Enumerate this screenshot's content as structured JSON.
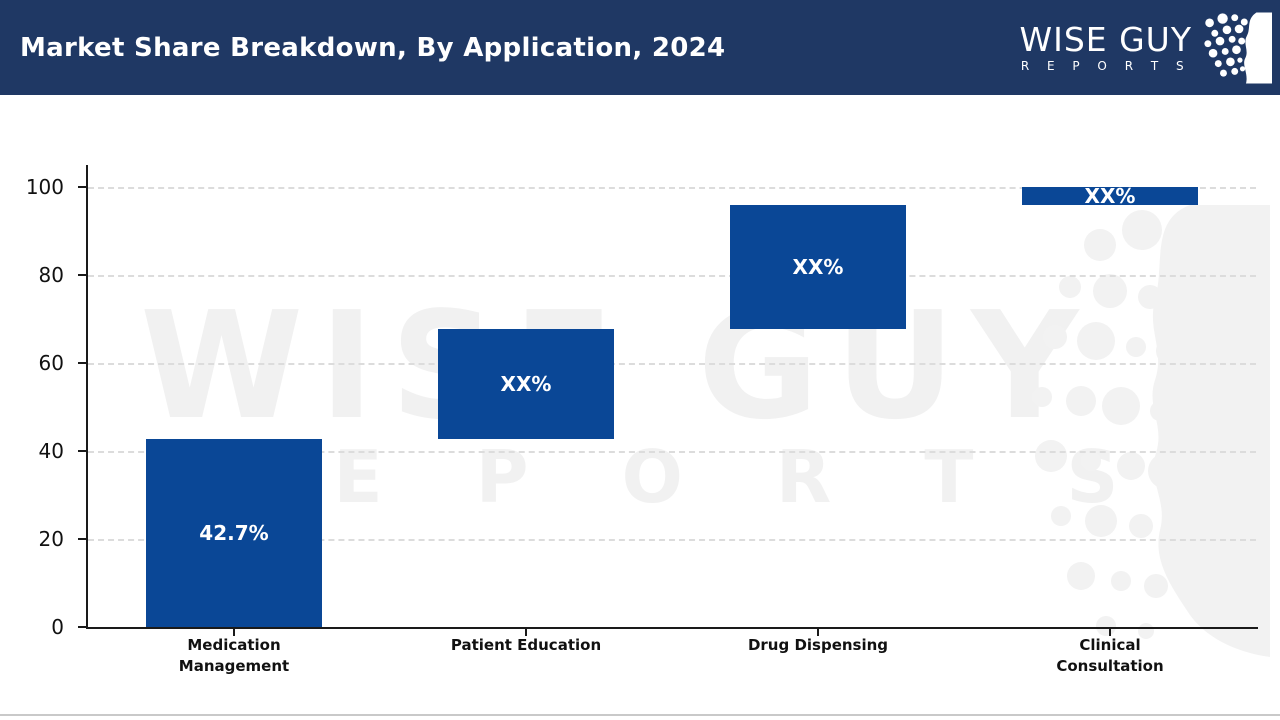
{
  "colors": {
    "header_bg": "#1f3864",
    "bar_blue": "#0a4796",
    "bar_label": "#ffffff",
    "watermark": "#f1f1f1",
    "gridline": "#dcdcdc",
    "axis": "#1a1a1a"
  },
  "header": {
    "title": "Market Share Breakdown, By Application, 2024",
    "logo_line1": "WISE GUY",
    "logo_line2": "R E P O R T S"
  },
  "watermark": {
    "line1": "WISE GUY",
    "line2": "R E P O R T S"
  },
  "chart_data": {
    "type": "bar",
    "variant": "waterfall",
    "title": "Market Share Breakdown, By Application, 2024",
    "categories": [
      "Medication\nManagement",
      "Patient Education",
      "Drug Dispensing",
      "Clinical\nConsultation"
    ],
    "bars": [
      {
        "category": "Medication Management",
        "label": "42.7%",
        "start": 0,
        "end": 42.7
      },
      {
        "category": "Patient Education",
        "label": "XX%",
        "start": 42.7,
        "end": 67.7
      },
      {
        "category": "Drug Dispensing",
        "label": "XX%",
        "start": 67.7,
        "end": 96
      },
      {
        "category": "Clinical Consultation",
        "label": "XX%",
        "start": 96,
        "end": 100
      }
    ],
    "yticks": [
      0,
      20,
      40,
      60,
      80,
      100
    ],
    "ylim": [
      0,
      105
    ],
    "xlabel": "",
    "ylabel": "",
    "grid": "horizontal-dashed",
    "legend": "none"
  }
}
